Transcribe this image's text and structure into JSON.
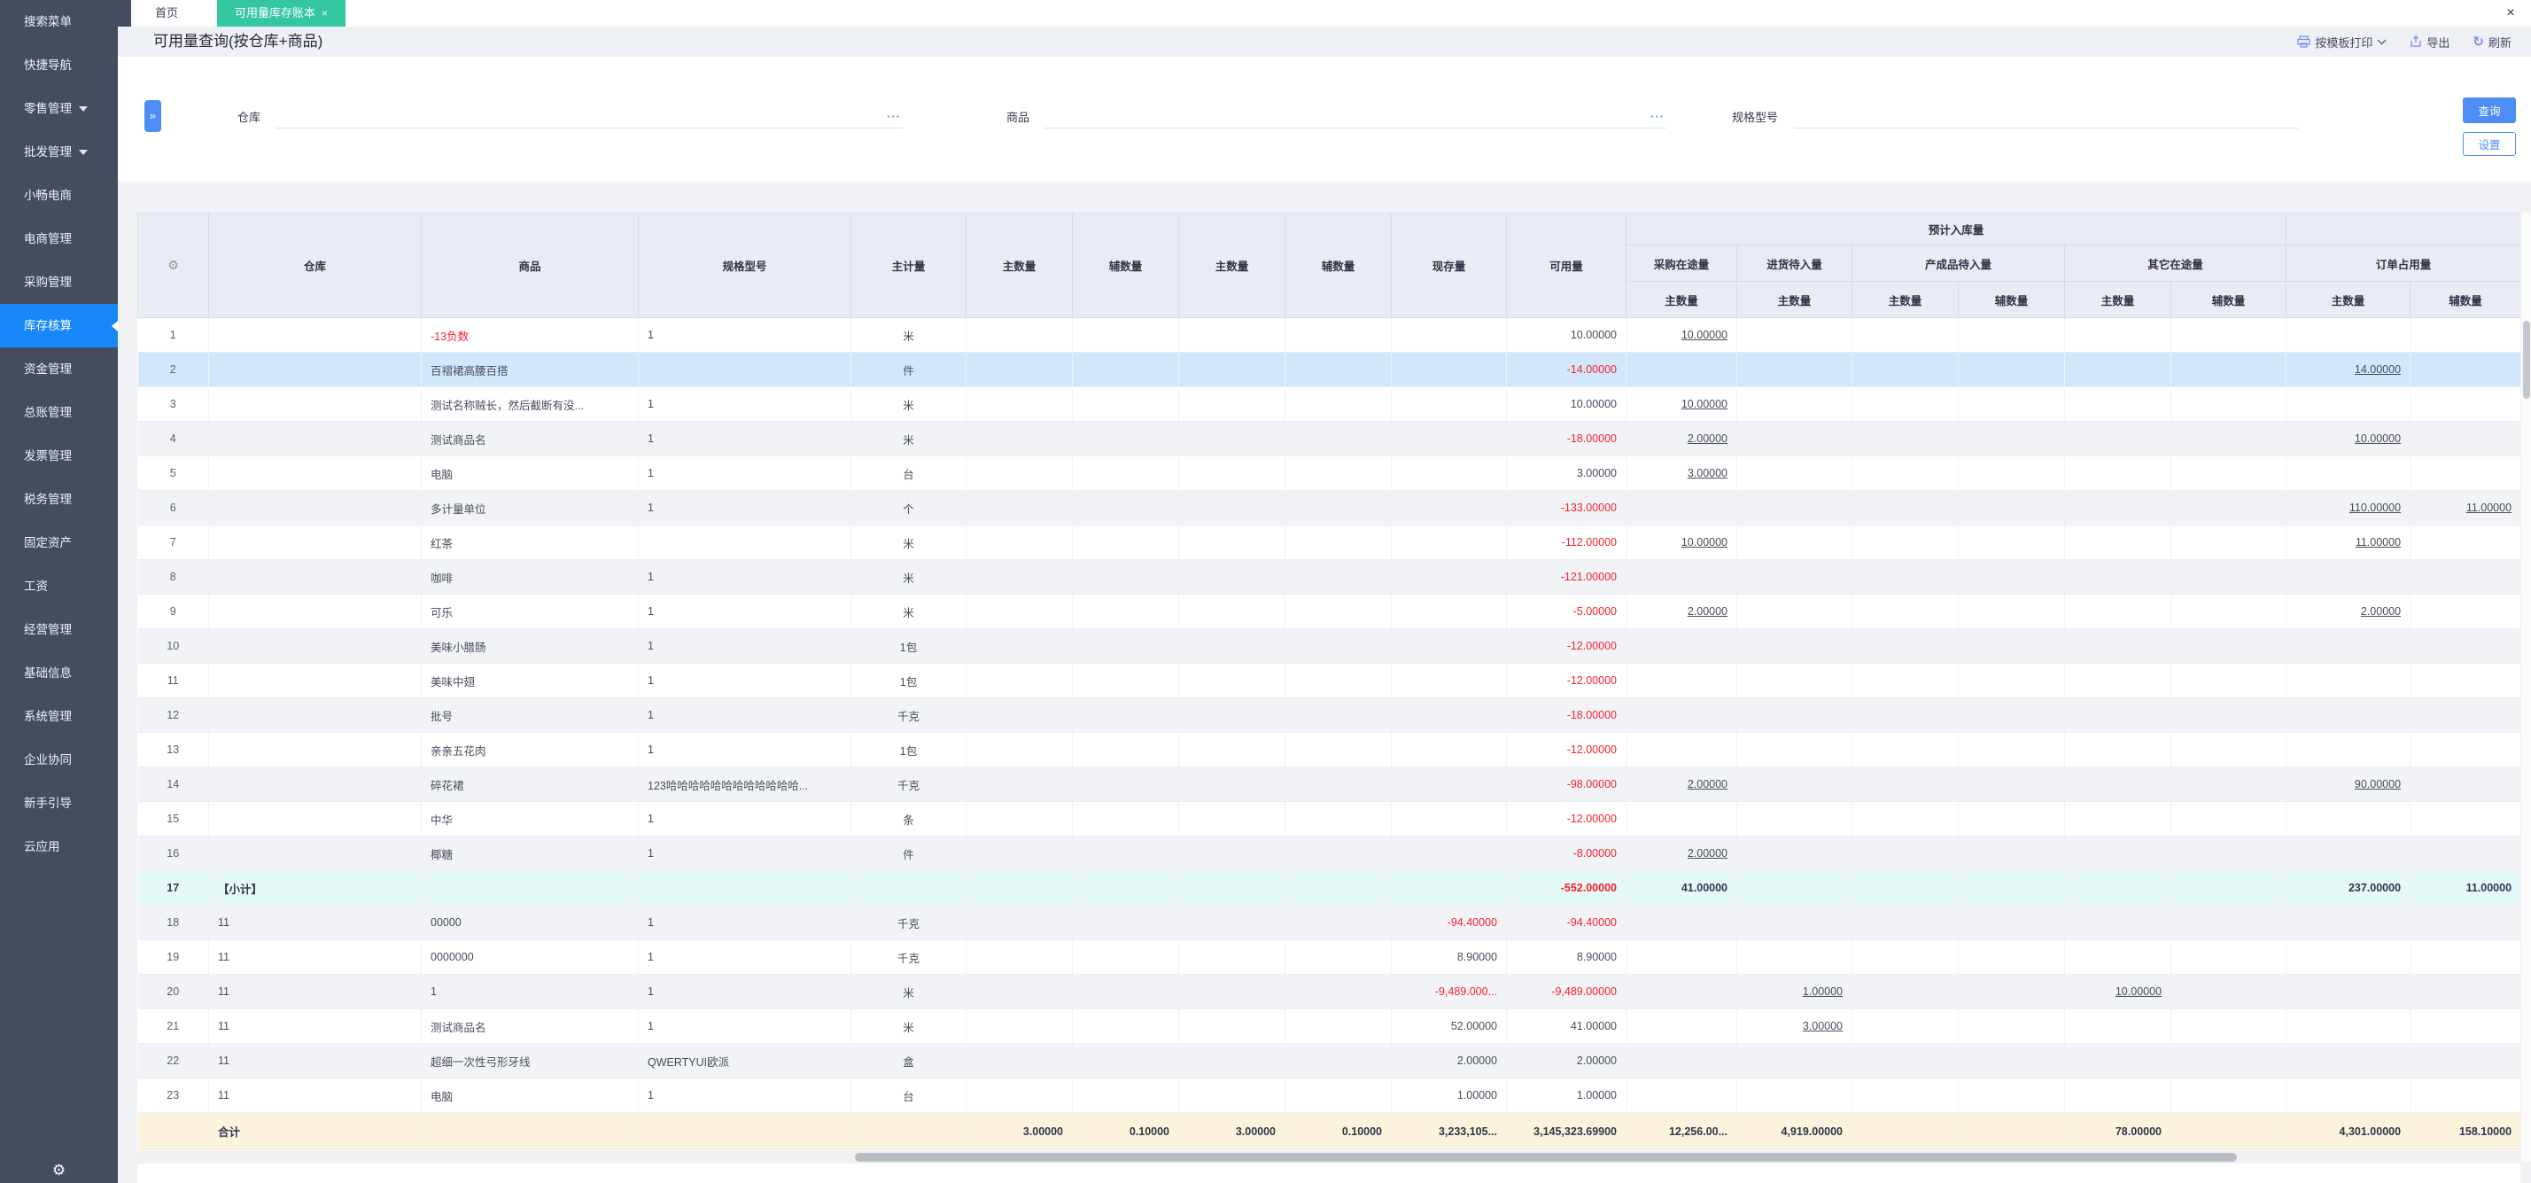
{
  "sidebar": {
    "items": [
      {
        "label": "搜索菜单"
      },
      {
        "label": "快捷导航"
      },
      {
        "label": "零售管理",
        "arrow": true
      },
      {
        "label": "批发管理",
        "arrow": true
      },
      {
        "label": "小畅电商"
      },
      {
        "label": "电商管理"
      },
      {
        "label": "采购管理"
      },
      {
        "label": "库存核算",
        "active": true
      },
      {
        "label": "资金管理"
      },
      {
        "label": "总账管理"
      },
      {
        "label": "发票管理"
      },
      {
        "label": "税务管理"
      },
      {
        "label": "固定资产"
      },
      {
        "label": "工资"
      },
      {
        "label": "经营管理"
      },
      {
        "label": "基础信息"
      },
      {
        "label": "系统管理"
      },
      {
        "label": "企业协同"
      },
      {
        "label": "新手引导"
      },
      {
        "label": "云应用"
      }
    ],
    "settings_icon": "⚙"
  },
  "tabs": {
    "home": "首页",
    "active": "可用量库存账本",
    "close": "×"
  },
  "window": {
    "close": "×"
  },
  "page": {
    "title": "可用量查询(按仓库+商品)"
  },
  "toolbar": {
    "print": "按模板打印",
    "export": "导出",
    "refresh": "刷新",
    "refresh_icon": "↻"
  },
  "filters": {
    "collapse": "»",
    "warehouse_label": "仓库",
    "product_label": "商品",
    "spec_label": "规格型号",
    "picker_dots": "···",
    "query_button": "查询",
    "settings_button": "设置"
  },
  "colors": {
    "accent_blue": "#4e8df6",
    "active_menu": "#1787fb",
    "tab_green": "#35c6a2",
    "negative_red": "#f5222d",
    "selected_row": "#d2e7fb",
    "subtotal_row": "#e6f9f9",
    "total_row": "#fbf3dc"
  },
  "table": {
    "headers": {
      "warehouse": "仓库",
      "product": "商品",
      "spec": "规格型号",
      "unit": "主计量",
      "main_qty": "主数量",
      "aux_qty": "辅数量",
      "onhand": "现存量",
      "avail": "可用量",
      "expected_group": "预计入库量",
      "purchase": "采购在途量",
      "incoming": "进货待入量",
      "finished": "产成品待入量",
      "other": "其它在途量",
      "order": "订单占用量"
    },
    "rows": [
      {
        "num": "1",
        "wh": "",
        "prod": "-13负数",
        "spec": "1",
        "unit": "米",
        "m1": "",
        "a1": "",
        "m2": "",
        "a2": "",
        "oh": "",
        "av": "10.00000",
        "pu": "10.00000",
        "ing": "",
        "fm": "",
        "fa": "",
        "om": "",
        "oa": "",
        "odm": "",
        "oda": "",
        "red": [
          "prod"
        ],
        "links": [
          "pu"
        ]
      },
      {
        "num": "2",
        "wh": "",
        "prod": "百褶裙高腰百搭",
        "spec": "",
        "unit": "件",
        "oh": "",
        "av": "-14.00000",
        "pu": "",
        "ing": "",
        "odm": "14.00000",
        "oda": "",
        "type": "selected",
        "red": [
          "av"
        ],
        "links": [
          "odm"
        ]
      },
      {
        "num": "3",
        "wh": "",
        "prod": "测试名称贼长，然后截断有没...",
        "spec": "1",
        "unit": "米",
        "oh": "",
        "av": "10.00000",
        "pu": "10.00000",
        "links": [
          "pu"
        ]
      },
      {
        "num": "4",
        "wh": "",
        "prod": "测试商品名",
        "spec": "1",
        "unit": "米",
        "oh": "",
        "av": "-18.00000",
        "pu": "2.00000",
        "odm": "10.00000",
        "red": [
          "av"
        ],
        "links": [
          "pu",
          "odm"
        ]
      },
      {
        "num": "5",
        "wh": "",
        "prod": "电脑",
        "spec": "1",
        "unit": "台",
        "oh": "",
        "av": "3.00000",
        "pu": "3.00000",
        "links": [
          "pu"
        ]
      },
      {
        "num": "6",
        "wh": "",
        "prod": "多计量单位",
        "spec": "1",
        "unit": "个",
        "oh": "",
        "av": "-133.00000",
        "odm": "110.00000",
        "oda": "11.00000",
        "red": [
          "av"
        ],
        "links": [
          "odm",
          "oda"
        ]
      },
      {
        "num": "7",
        "wh": "",
        "prod": "红茶",
        "spec": "",
        "unit": "米",
        "oh": "",
        "av": "-112.00000",
        "pu": "10.00000",
        "odm": "11.00000",
        "red": [
          "av"
        ],
        "links": [
          "pu",
          "odm"
        ]
      },
      {
        "num": "8",
        "wh": "",
        "prod": "咖啡",
        "spec": "1",
        "unit": "米",
        "oh": "",
        "av": "-121.00000",
        "red": [
          "av"
        ]
      },
      {
        "num": "9",
        "wh": "",
        "prod": "可乐",
        "spec": "1",
        "unit": "米",
        "oh": "",
        "av": "-5.00000",
        "pu": "2.00000",
        "odm": "2.00000",
        "red": [
          "av"
        ],
        "links": [
          "pu",
          "odm"
        ]
      },
      {
        "num": "10",
        "wh": "",
        "prod": "美味小腊肠",
        "spec": "1",
        "unit": "1包",
        "oh": "",
        "av": "-12.00000",
        "red": [
          "av"
        ]
      },
      {
        "num": "11",
        "wh": "",
        "prod": "美味中翅",
        "spec": "1",
        "unit": "1包",
        "oh": "",
        "av": "-12.00000",
        "red": [
          "av"
        ]
      },
      {
        "num": "12",
        "wh": "",
        "prod": "批号",
        "spec": "1",
        "unit": "千克",
        "oh": "",
        "av": "-18.00000",
        "red": [
          "av"
        ]
      },
      {
        "num": "13",
        "wh": "",
        "prod": "亲亲五花肉",
        "spec": "1",
        "unit": "1包",
        "oh": "",
        "av": "-12.00000",
        "red": [
          "av"
        ]
      },
      {
        "num": "14",
        "wh": "",
        "prod": "碎花裙",
        "spec": "123哈哈哈哈哈哈哈哈哈哈哈哈...",
        "unit": "千克",
        "oh": "",
        "av": "-98.00000",
        "pu": "2.00000",
        "odm": "90.00000",
        "red": [
          "av"
        ],
        "links": [
          "pu",
          "odm"
        ]
      },
      {
        "num": "15",
        "wh": "",
        "prod": "中华",
        "spec": "1",
        "unit": "条",
        "oh": "",
        "av": "-12.00000",
        "red": [
          "av"
        ]
      },
      {
        "num": "16",
        "wh": "",
        "prod": "椰糖",
        "spec": "1",
        "unit": "件",
        "oh": "",
        "av": "-8.00000",
        "pu": "2.00000",
        "red": [
          "av"
        ],
        "links": [
          "pu"
        ]
      },
      {
        "num": "17",
        "wh": "【小计】",
        "prod": "",
        "spec": "",
        "unit": "",
        "oh": "",
        "av": "-552.00000",
        "pu": "41.00000",
        "odm": "237.00000",
        "oda": "11.00000",
        "type": "subtotal",
        "red": [
          "av"
        ]
      },
      {
        "num": "18",
        "wh": "11",
        "prod": "00000",
        "spec": "1",
        "unit": "千克",
        "oh": "-94.40000",
        "av": "-94.40000",
        "red": [
          "oh",
          "av"
        ]
      },
      {
        "num": "19",
        "wh": "11",
        "prod": "0000000",
        "spec": "1",
        "unit": "千克",
        "oh": "8.90000",
        "av": "8.90000"
      },
      {
        "num": "20",
        "wh": "11",
        "prod": "1",
        "spec": "1",
        "unit": "米",
        "oh": "-9,489.000...",
        "av": "-9,489.00000",
        "ing": "1.00000",
        "om": "10.00000",
        "red": [
          "oh",
          "av"
        ],
        "links": [
          "ing",
          "om"
        ]
      },
      {
        "num": "21",
        "wh": "11",
        "prod": "测试商品名",
        "spec": "1",
        "unit": "米",
        "oh": "52.00000",
        "av": "41.00000",
        "ing": "3.00000",
        "links": [
          "ing"
        ]
      },
      {
        "num": "22",
        "wh": "11",
        "prod": "超细一次性弓形牙线",
        "spec": "QWERTYUI欧派",
        "unit": "盒",
        "oh": "2.00000",
        "av": "2.00000"
      },
      {
        "num": "23",
        "wh": "11",
        "prod": "电脑",
        "spec": "1",
        "unit": "台",
        "oh": "1.00000",
        "av": "1.00000"
      },
      {
        "num": "",
        "wh": "合计",
        "prod": "",
        "spec": "",
        "unit": "",
        "m1": "3.00000",
        "a1": "0.10000",
        "m2": "3.00000",
        "a2": "0.10000",
        "oh": "3,233,105...",
        "av": "3,145,323.69900",
        "pu": "12,256.00...",
        "ing": "4,919.00000",
        "fm": "",
        "fa": "",
        "om": "78.00000",
        "oa": "",
        "odm": "4,301.00000",
        "oda": "158.10000",
        "type": "total"
      }
    ]
  }
}
